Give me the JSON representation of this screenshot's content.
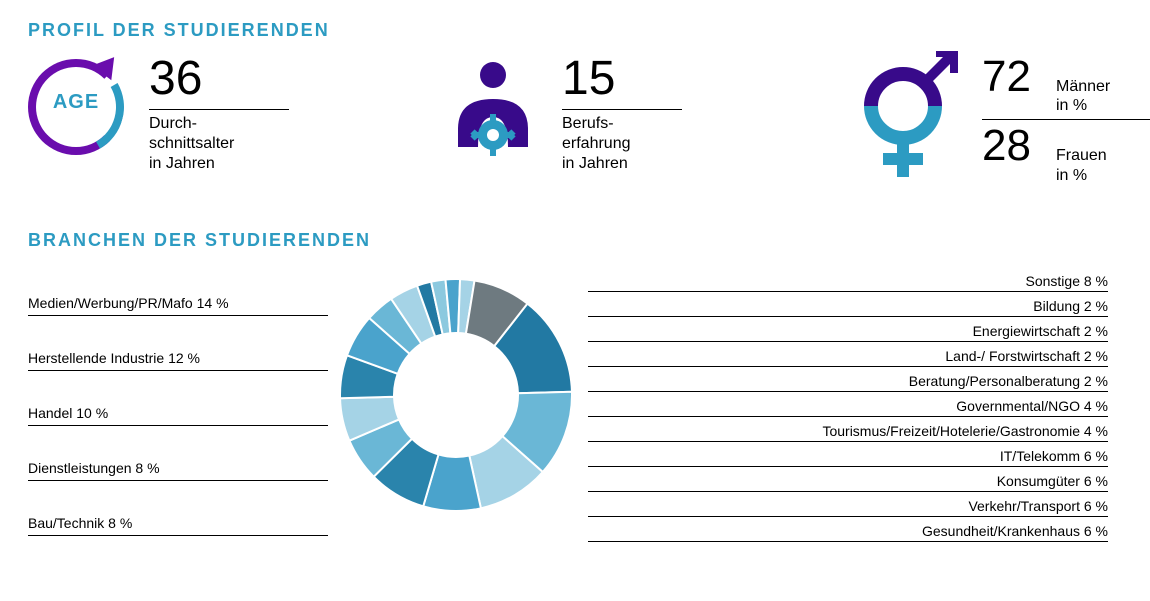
{
  "headings": {
    "profile": "PROFIL DER STUDIERENDEN",
    "industries": "BRANCHEN DER STUDIERENDEN"
  },
  "profile": {
    "age": {
      "icon_text": "AGE",
      "ring_color": "#6a0dad",
      "accent_color": "#2c9bc2",
      "value": "36",
      "label_l1": "Durch-",
      "label_l2": "schnittsalter",
      "label_l3": "in Jahren"
    },
    "experience": {
      "icon_body_color": "#380a8a",
      "icon_gear_color": "#2c9bc2",
      "value": "15",
      "label_l1": "Berufs-",
      "label_l2": "erfahrung",
      "label_l3": "in Jahren"
    },
    "gender": {
      "male_color": "#380a8a",
      "female_color": "#2c9bc2",
      "male_value": "72",
      "male_label_l1": "Männer",
      "male_label_l2": "in %",
      "female_value": "28",
      "female_label_l1": "Frauen",
      "female_label_l2": "in %"
    }
  },
  "donut": {
    "type": "donut",
    "outer_radius": 116,
    "inner_radius": 62,
    "stroke_color": "#ffffff",
    "stroke_width": 2,
    "start_angle_deg": -52,
    "slices": [
      {
        "label": "Medien/Werbung/PR/Mafo 14 %",
        "value": 14,
        "color": "#2279a3",
        "side": "left"
      },
      {
        "label": "Herstellende Industrie 12 %",
        "value": 12,
        "color": "#6ab7d6",
        "side": "left"
      },
      {
        "label": "Handel 10 %",
        "value": 10,
        "color": "#a5d3e6",
        "side": "left"
      },
      {
        "label": "Dienstleistungen 8 %",
        "value": 8,
        "color": "#4aa3cc",
        "side": "left"
      },
      {
        "label": "Bau/Technik 8 %",
        "value": 8,
        "color": "#2a84ac",
        "side": "left"
      },
      {
        "label": "Gesundheit/Krankenhaus 6 %",
        "value": 6,
        "color": "#6ab7d6",
        "side": "right"
      },
      {
        "label": "Verkehr/Transport 6 %",
        "value": 6,
        "color": "#a5d3e6",
        "side": "right"
      },
      {
        "label": "Konsumgüter 6 %",
        "value": 6,
        "color": "#2a84ac",
        "side": "right"
      },
      {
        "label": "IT/Telekomm 6 %",
        "value": 6,
        "color": "#4aa3cc",
        "side": "right"
      },
      {
        "label": "Tourismus/Freizeit/Hotelerie/Gastronomie 4 %",
        "value": 4,
        "color": "#6ab7d6",
        "side": "right"
      },
      {
        "label": "Governmental/NGO 4 %",
        "value": 4,
        "color": "#a5d3e6",
        "side": "right"
      },
      {
        "label": "Beratung/Personalberatung 2 %",
        "value": 2,
        "color": "#2279a3",
        "side": "right"
      },
      {
        "label": "Land-/ Forstwirtschaft 2 %",
        "value": 2,
        "color": "#8cc9df",
        "side": "right"
      },
      {
        "label": "Energiewirtschaft 2 %",
        "value": 2,
        "color": "#4aa3cc",
        "side": "right"
      },
      {
        "label": "Bildung 2 %",
        "value": 2,
        "color": "#a5d3e6",
        "side": "right"
      },
      {
        "label": "Sonstige 8 %",
        "value": 8,
        "color": "#6e7a80",
        "side": "right"
      }
    ],
    "right_label_order": [
      "Sonstige 8 %",
      "Bildung 2 %",
      "Energiewirtschaft 2 %",
      "Land-/ Forstwirtschaft 2 %",
      "Beratung/Personalberatung 2 %",
      "Governmental/NGO 4 %",
      "Tourismus/Freizeit/Hotelerie/Gastronomie 4 %",
      "IT/Telekomm 6 %",
      "Konsumgüter 6 %",
      "Verkehr/Transport 6 %",
      "Gesundheit/Krankenhaus 6 %"
    ],
    "left_label_order": [
      "Medien/Werbung/PR/Mafo 14 %",
      "Herstellende Industrie 12 %",
      "Handel 10 %",
      "Dienstleistungen 8 %",
      "Bau/Technik 8 %"
    ]
  }
}
